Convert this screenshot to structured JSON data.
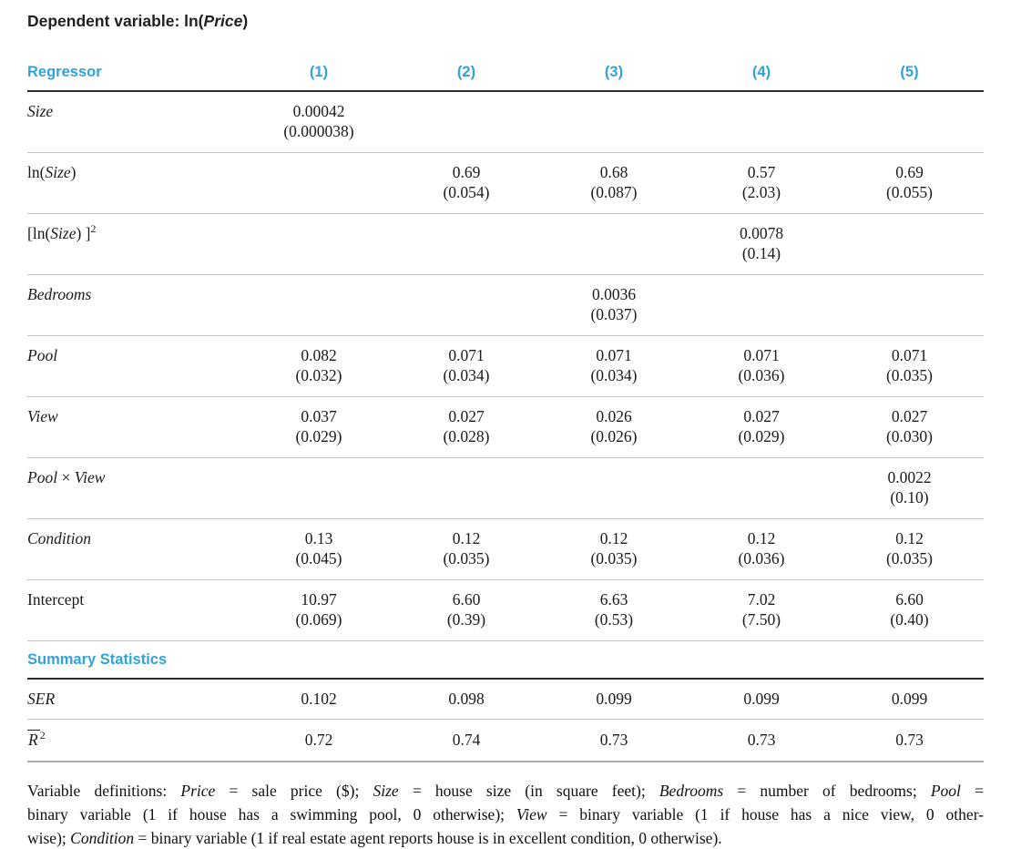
{
  "colors": {
    "accent": "#31a2dc",
    "rule_dark": "#2d2d2d",
    "rule_light": "#c3c3c3"
  },
  "title": {
    "segments": [
      {
        "t": "Dependent variable: ln(",
        "style": "bold"
      },
      {
        "t": "Price",
        "style": "bold-italic"
      },
      {
        "t": ")",
        "style": "bold"
      }
    ]
  },
  "table": {
    "header": {
      "regressor_label": "Regressor",
      "columns": [
        "(1)",
        "(2)",
        "(3)",
        "(4)",
        "(5)"
      ]
    },
    "rows": [
      {
        "label": [
          {
            "t": "Size",
            "style": "italic"
          }
        ],
        "cells": [
          {
            "est": "0.00042",
            "se": "(0.000038)"
          },
          null,
          null,
          null,
          null
        ]
      },
      {
        "label": [
          {
            "t": "ln(",
            "style": "roman"
          },
          {
            "t": "Size",
            "style": "italic"
          },
          {
            "t": ")",
            "style": "roman"
          }
        ],
        "cells": [
          null,
          {
            "est": "0.69",
            "se": "(0.054)"
          },
          {
            "est": "0.68",
            "se": "(0.087)"
          },
          {
            "est": "0.57",
            "se": "(2.03)"
          },
          {
            "est": "0.69",
            "se": "(0.055)"
          }
        ]
      },
      {
        "label": [
          {
            "t": "[ln(",
            "style": "roman"
          },
          {
            "t": "Size",
            "style": "italic"
          },
          {
            "t": ") ]",
            "style": "roman"
          },
          {
            "t": "2",
            "style": "sup"
          }
        ],
        "cells": [
          null,
          null,
          null,
          {
            "est": "0.0078",
            "se": "(0.14)"
          },
          null
        ]
      },
      {
        "label": [
          {
            "t": "Bedrooms",
            "style": "italic"
          }
        ],
        "cells": [
          null,
          null,
          {
            "est": "0.0036",
            "se": "(0.037)"
          },
          null,
          null
        ]
      },
      {
        "label": [
          {
            "t": "Pool",
            "style": "italic"
          }
        ],
        "cells": [
          {
            "est": "0.082",
            "se": "(0.032)"
          },
          {
            "est": "0.071",
            "se": "(0.034)"
          },
          {
            "est": "0.071",
            "se": "(0.034)"
          },
          {
            "est": "0.071",
            "se": "(0.036)"
          },
          {
            "est": "0.071",
            "se": "(0.035)"
          }
        ]
      },
      {
        "label": [
          {
            "t": "View",
            "style": "italic"
          }
        ],
        "cells": [
          {
            "est": "0.037",
            "se": "(0.029)"
          },
          {
            "est": "0.027",
            "se": "(0.028)"
          },
          {
            "est": "0.026",
            "se": "(0.026)"
          },
          {
            "est": "0.027",
            "se": "(0.029)"
          },
          {
            "est": "0.027",
            "se": "(0.030)"
          }
        ]
      },
      {
        "label": [
          {
            "t": "Pool",
            "style": "italic"
          },
          {
            "t": " × ",
            "style": "roman"
          },
          {
            "t": "View",
            "style": "italic"
          }
        ],
        "cells": [
          null,
          null,
          null,
          null,
          {
            "est": "0.0022",
            "se": "(0.10)"
          }
        ]
      },
      {
        "label": [
          {
            "t": "Condition",
            "style": "italic"
          }
        ],
        "cells": [
          {
            "est": "0.13",
            "se": "(0.045)"
          },
          {
            "est": "0.12",
            "se": "(0.035)"
          },
          {
            "est": "0.12",
            "se": "(0.035)"
          },
          {
            "est": "0.12",
            "se": "(0.036)"
          },
          {
            "est": "0.12",
            "se": "(0.035)"
          }
        ]
      },
      {
        "label": [
          {
            "t": "Intercept",
            "style": "roman"
          }
        ],
        "cells": [
          {
            "est": "10.97",
            "se": "(0.069)"
          },
          {
            "est": "6.60",
            "se": "(0.39)"
          },
          {
            "est": "6.63",
            "se": "(0.53)"
          },
          {
            "est": "7.02",
            "se": "(7.50)"
          },
          {
            "est": "6.60",
            "se": "(0.40)"
          }
        ]
      }
    ],
    "summary": {
      "title": "Summary Statistics",
      "rows": [
        {
          "label": [
            {
              "t": "SER",
              "style": "italic"
            }
          ],
          "values": [
            "0.102",
            "0.098",
            "0.099",
            "0.099",
            "0.099"
          ]
        },
        {
          "label": [
            {
              "t": "R",
              "style": "italic-overline"
            },
            {
              "t": "2",
              "style": "sup"
            }
          ],
          "values": [
            "0.72",
            "0.74",
            "0.73",
            "0.73",
            "0.73"
          ]
        }
      ]
    }
  },
  "footnote": {
    "lines": [
      [
        {
          "t": "Variable definitions: ",
          "style": "roman"
        },
        {
          "t": "Price",
          "style": "italic"
        },
        {
          "t": " = sale price ($); ",
          "style": "roman"
        },
        {
          "t": "Size",
          "style": "italic"
        },
        {
          "t": " = house size (in square feet); ",
          "style": "roman"
        },
        {
          "t": "Bedrooms",
          "style": "italic"
        },
        {
          "t": " = number of bedrooms; ",
          "style": "roman"
        },
        {
          "t": "Pool",
          "style": "italic"
        },
        {
          "t": " =",
          "style": "roman"
        }
      ],
      [
        {
          "t": "binary variable (1 if house has a swimming pool, 0 otherwise); ",
          "style": "roman"
        },
        {
          "t": "View",
          "style": "italic"
        },
        {
          "t": " = binary variable (1 if house has a nice view, 0 other-",
          "style": "roman"
        }
      ],
      [
        {
          "t": "wise); ",
          "style": "roman"
        },
        {
          "t": "Condition",
          "style": "italic"
        },
        {
          "t": " = binary variable (1 if real estate agent reports house is in excellent condition, 0 otherwise).",
          "style": "roman"
        }
      ]
    ]
  }
}
